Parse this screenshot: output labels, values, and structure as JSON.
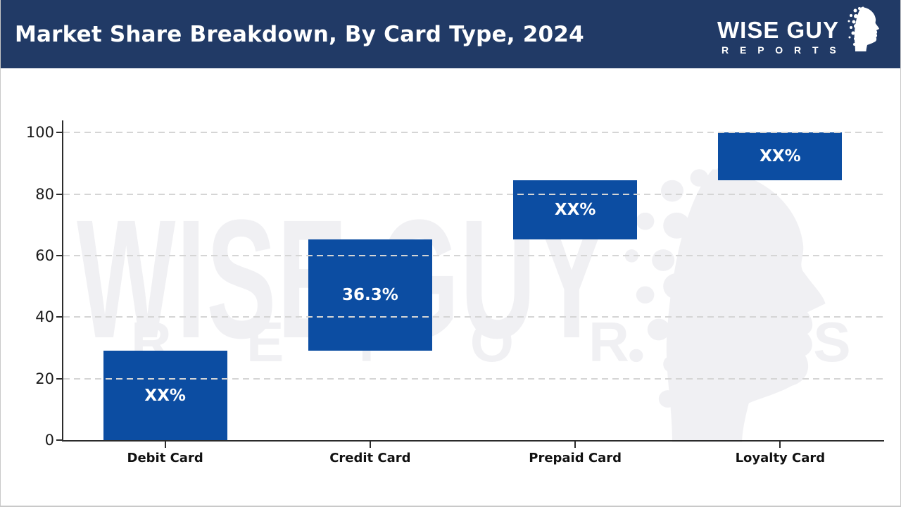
{
  "header": {
    "title": "Market Share Breakdown, By Card Type, 2024",
    "logo": {
      "line1": "WISE GUY",
      "line2": "R E P O R T S"
    }
  },
  "watermark": {
    "line1": "WISE GUY",
    "line2": "R E P O R T S"
  },
  "chart_data": {
    "type": "bar",
    "subtype": "waterfall",
    "title": "Market Share Breakdown, By Card Type, 2024",
    "categories": [
      "Debit Card",
      "Credit Card",
      "Prepaid Card",
      "Loyalty Card"
    ],
    "values": [
      29.0,
      36.3,
      19.2,
      15.5
    ],
    "starts": [
      0,
      29.0,
      65.3,
      84.5
    ],
    "bar_labels": [
      "XX%",
      "36.3%",
      "XX%",
      "XX%"
    ],
    "ylim": [
      0,
      104
    ],
    "yticks": [
      0,
      20,
      40,
      60,
      80,
      100
    ],
    "xlabel": "",
    "ylabel": "",
    "grid": "horizontal-dashed, drawn over bars",
    "legend": "none",
    "bar_color": "#0c4da2",
    "bar_label_color": "#ffffff"
  },
  "colors": {
    "header_bg": "#213a66",
    "bar": "#0c4da2",
    "grid": "#d5d5d5",
    "axis": "#2b2b2b",
    "watermark": "#f0f0f3",
    "border": "#c9c9c9"
  }
}
